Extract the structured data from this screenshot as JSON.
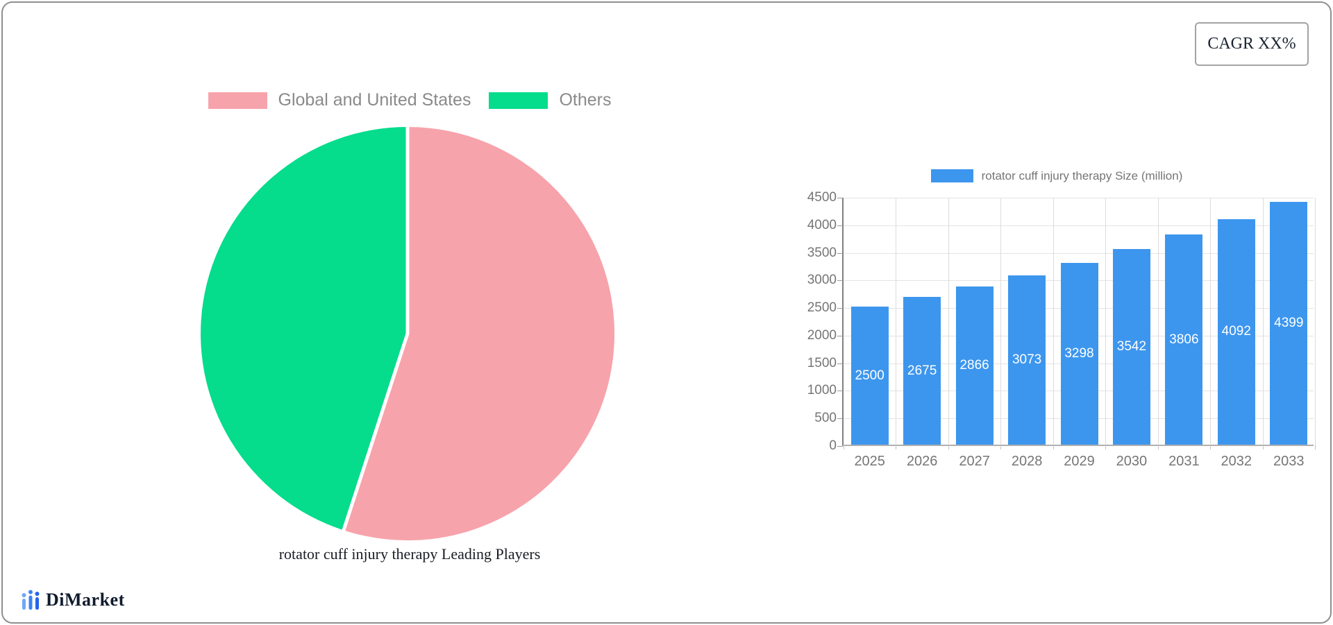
{
  "window": {
    "cagr_badge": "CAGR XX%"
  },
  "branding": {
    "name": "DiMarket",
    "icon": "dimarket-logo-icon"
  },
  "pie_section": {
    "caption": "rotator cuff injury therapy Leading Players",
    "legend": [
      {
        "label": "Global and United States",
        "color": "#F7A3AB"
      },
      {
        "label": "Others",
        "color": "#05DC8C"
      }
    ]
  },
  "bar_section": {
    "legend_label": "rotator cuff injury therapy Size (million)",
    "bar_color": "#3D96EE"
  },
  "chart_data": [
    {
      "type": "pie",
      "title": "rotator cuff injury therapy Leading Players",
      "labels": [
        "Global and United States",
        "Others"
      ],
      "values": [
        55,
        45
      ],
      "unit": "% (estimated from arc angles, no numeric labels shown)",
      "colors": [
        "#F7A3AB",
        "#05DC8C"
      ],
      "legend_position": "top",
      "start_angle": "12 o'clock, clockwise, pink slice first"
    },
    {
      "type": "bar",
      "categories": [
        "2025",
        "2026",
        "2027",
        "2028",
        "2029",
        "2030",
        "2031",
        "2032",
        "2033"
      ],
      "series": [
        {
          "name": "rotator cuff injury therapy Size (million)",
          "values": [
            2500,
            2675,
            2866,
            3073,
            3298,
            3542,
            3806,
            4092,
            4399
          ]
        }
      ],
      "ylim": [
        0,
        4500
      ],
      "yticks": [
        0,
        500,
        1000,
        1500,
        2000,
        2500,
        3000,
        3500,
        4000,
        4500
      ],
      "grid": true,
      "legend_position": "top",
      "value_labels_position": "inside-center-white",
      "bar_color": "#3D96EE"
    }
  ]
}
